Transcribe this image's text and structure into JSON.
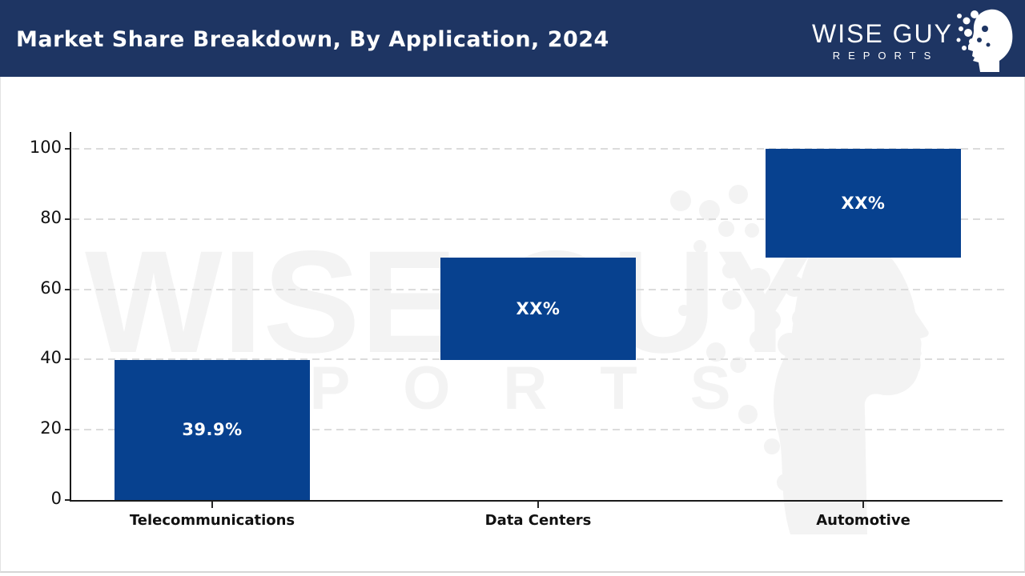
{
  "header": {
    "title": "Market Share Breakdown, By Application, 2024",
    "logo": {
      "line1": "WISE GUY",
      "line2": "REPORTS"
    }
  },
  "watermark": {
    "line1": "WISE GUY",
    "line2": "REPORTS"
  },
  "icons": {
    "logo_head": "dotted-head-profile",
    "watermark_face": "dotted-head-profile-watermark"
  },
  "colors": {
    "header_bg": "#1e3563",
    "bar": "#07418f",
    "bar_label": "#ffffff",
    "gridline": "#dcdcdc",
    "axis": "#1a1a1a",
    "watermark": "#f3f3f3"
  },
  "chart_data": {
    "type": "bar",
    "subtype": "floating-waterfall-segments",
    "title": "Market Share Breakdown, By Application, 2024",
    "categories": [
      "Telecommunications",
      "Data Centers",
      "Automotive"
    ],
    "segments": [
      {
        "category": "Telecommunications",
        "start": 0,
        "end": 39.9,
        "label": "39.9%"
      },
      {
        "category": "Data Centers",
        "start": 39.9,
        "end": 69,
        "label": "XX%"
      },
      {
        "category": "Automotive",
        "start": 69,
        "end": 100,
        "label": "XX%"
      }
    ],
    "xlabel": "",
    "ylabel": "",
    "ylim": [
      0,
      100
    ],
    "yticks": [
      0,
      20,
      40,
      60,
      80,
      100
    ],
    "grid": "horizontal-dashed",
    "legend": "none",
    "bar_color": "#07418f",
    "label_color": "#ffffff"
  }
}
